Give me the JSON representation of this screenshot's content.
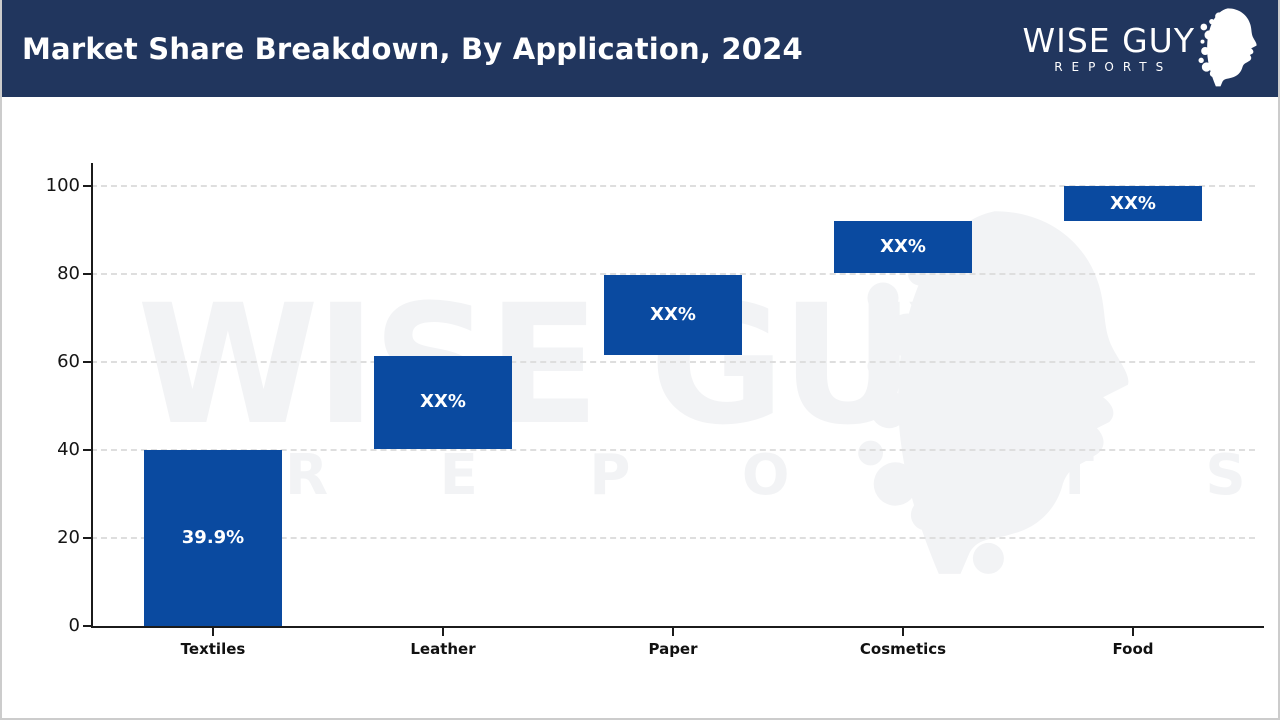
{
  "header": {
    "title": "Market Share Breakdown, By Application, 2024",
    "background_color": "#21365E",
    "logo": {
      "line1": "WISE GUY",
      "line2": "REPORTS",
      "head_icon": "dotted-face-profile"
    }
  },
  "watermark": {
    "line1": "WISE GUY",
    "line2": "REPORTS",
    "color": "#f2f3f5"
  },
  "chart_data": {
    "type": "bar",
    "subtype": "waterfall",
    "title": "Market Share Breakdown, By Application, 2024",
    "categories": [
      "Textiles",
      "Leather",
      "Paper",
      "Cosmetics",
      "Food"
    ],
    "segments": [
      {
        "category": "Textiles",
        "start": 0.0,
        "end": 39.9,
        "label": "39.9%"
      },
      {
        "category": "Leather",
        "start": 40.2,
        "end": 61.4,
        "label": "XX%"
      },
      {
        "category": "Paper",
        "start": 61.5,
        "end": 79.8,
        "label": "XX%"
      },
      {
        "category": "Cosmetics",
        "start": 80.2,
        "end": 92.0,
        "label": "XX%"
      },
      {
        "category": "Food",
        "start": 92.0,
        "end": 100.0,
        "label": "XX%"
      }
    ],
    "y_ticks": [
      0,
      20,
      40,
      60,
      80,
      100
    ],
    "ylim": [
      0,
      105
    ],
    "xlabel": "",
    "ylabel": "",
    "legend": "none",
    "grid": "horizontal-dashed",
    "bar_color": "#0A4AA0",
    "bar_label_color": "#ffffff",
    "axis_color": "#1b1b1b",
    "gridline_color": "#dedede"
  }
}
